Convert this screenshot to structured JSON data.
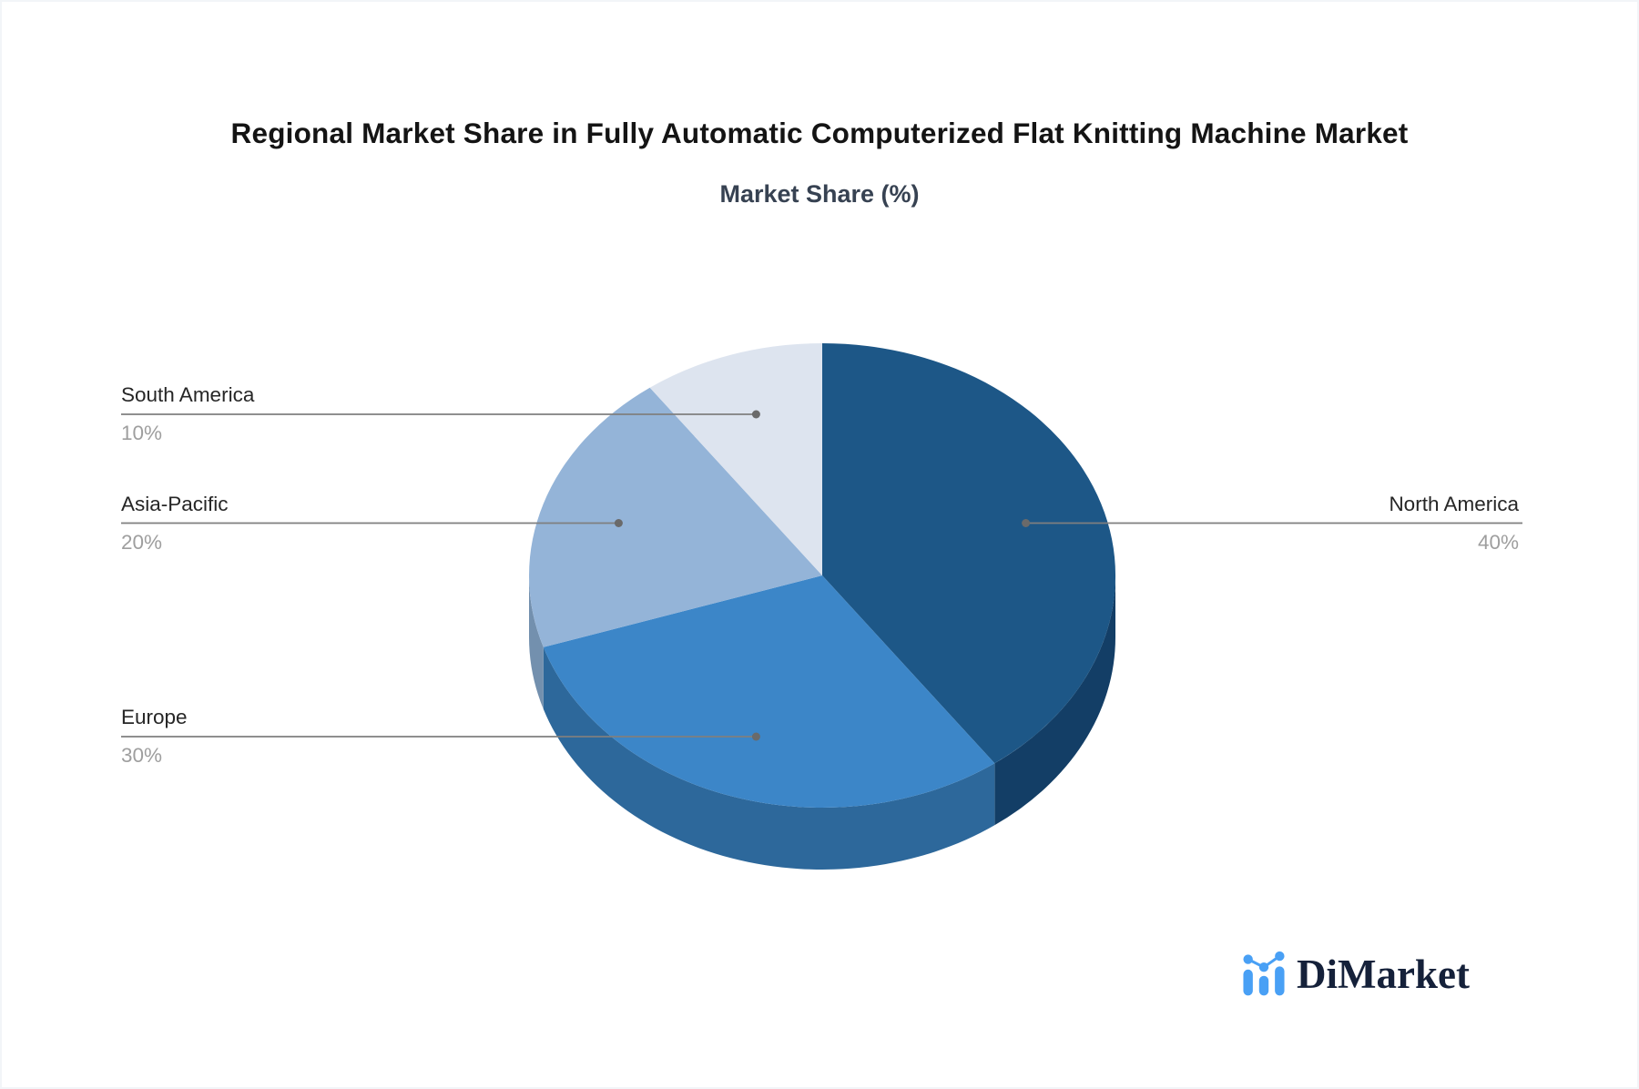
{
  "header": {
    "title": "Regional Market Share in Fully Automatic Computerized Flat Knitting Machine Market",
    "subtitle": "Market Share (%)",
    "title_color": "#141414",
    "subtitle_color": "#374252"
  },
  "chart_data": {
    "type": "pie",
    "style": "3d",
    "title": "Regional Market Share in Fully Automatic Computerized Flat Knitting Machine Market",
    "subtitle": "Market Share (%)",
    "unit": "%",
    "start_angle_deg": 90,
    "direction": "clockwise",
    "legend_position": "leader-labels",
    "slices": [
      {
        "label": "North America",
        "value": 40,
        "display": "40%",
        "color_top": "#1d5787",
        "color_side": "#133e66",
        "label_side": "right"
      },
      {
        "label": "Europe",
        "value": 30,
        "display": "30%",
        "color_top": "#3c86c8",
        "color_side": "#2d689b",
        "label_side": "left"
      },
      {
        "label": "Asia-Pacific",
        "value": 20,
        "display": "20%",
        "color_top": "#94b4d8",
        "color_side": "#7390ae",
        "label_side": "left"
      },
      {
        "label": "South America",
        "value": 10,
        "display": "10%",
        "color_top": "#dde4ef",
        "color_side": "#b9c4d6",
        "label_side": "left"
      }
    ],
    "leader_line_color": "#7f7f7f",
    "leader_dot_color": "#6a6a6a",
    "label_color": "#262626",
    "value_color": "#9e9e9e"
  },
  "logo": {
    "text": "DiMarket",
    "icon": "bar-line-chart-icon",
    "icon_color": "#49a0f5",
    "text_color": "#15213a"
  }
}
